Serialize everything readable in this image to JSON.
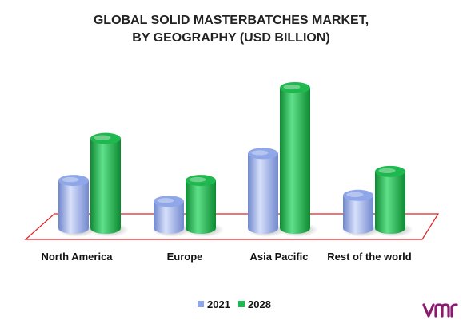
{
  "chart_data": {
    "type": "bar",
    "title_lines": [
      "GLOBAL SOLID MASTERBATCHES MARKET,",
      "BY GEOGRAPHY (USD BILLION)"
    ],
    "categories": [
      "North America",
      "Europe",
      "Asia Pacific",
      "Rest of the world"
    ],
    "series": [
      {
        "name": "2021",
        "values": [
          1.6,
          0.9,
          2.5,
          1.1
        ],
        "color": "#8fa6e8"
      },
      {
        "name": "2028",
        "values": [
          3.0,
          1.6,
          4.7,
          1.9
        ],
        "color": "#1fb84f"
      }
    ],
    "ylim": [
      0,
      5
    ],
    "grid": false,
    "legend_position": "bottom-center",
    "floor_outline_color": "#e02020"
  },
  "logo": {
    "text": "vmr",
    "color": "#8a1c6e"
  }
}
